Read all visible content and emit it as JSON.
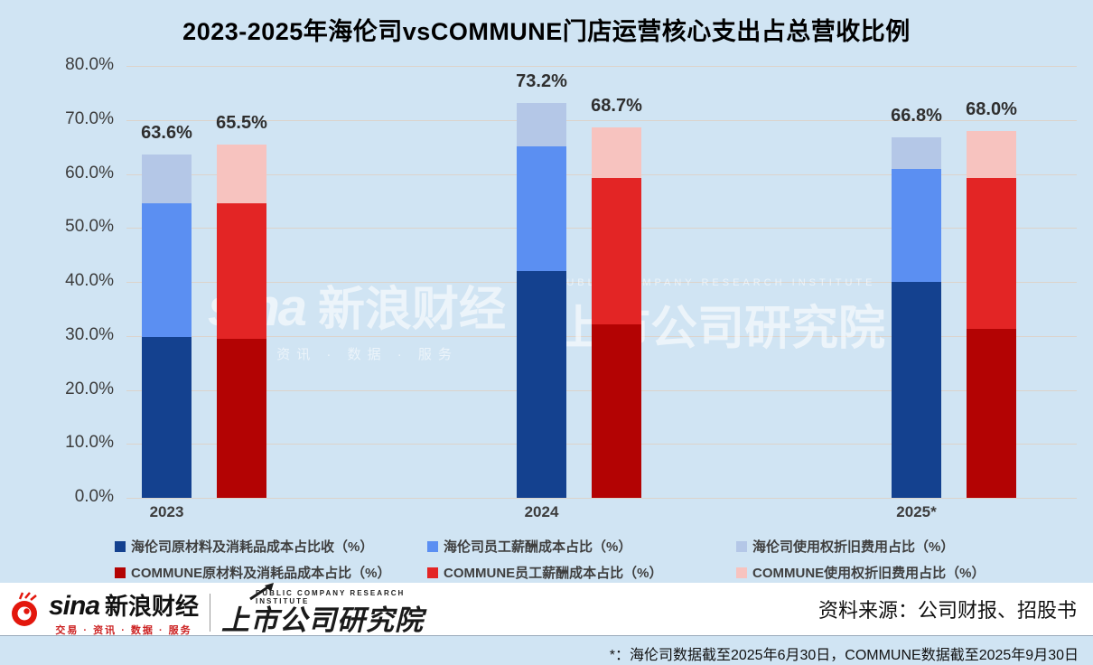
{
  "title": "2023-2025年海伦司vsCOMMUNE门店运营核心支出占总营收比例",
  "colors": {
    "background": "#D0E4F3",
    "gridline": "#DCD3CB",
    "helens_materials": "#14418F",
    "helens_payroll": "#5B8FF2",
    "helens_depreciation": "#B4C7E7",
    "commune_materials": "#B30303",
    "commune_payroll": "#E32525",
    "commune_depreciation": "#F7C3BF",
    "sina_red": "#E3170D"
  },
  "chart_data": {
    "type": "bar",
    "stacked": true,
    "categories": [
      "2023",
      "2024",
      "2025*"
    ],
    "ylim": [
      0,
      80
    ],
    "ytick_labels": [
      "80.0%",
      "70.0%",
      "60.0%",
      "50.0%",
      "40.0%",
      "30.0%",
      "20.0%",
      "10.0%",
      "0.0%"
    ],
    "grid": true,
    "legend_position": "bottom",
    "groups": [
      {
        "name": "海伦司",
        "totals": [
          63.6,
          73.2,
          66.8
        ],
        "total_labels": [
          "63.6%",
          "73.2%",
          "66.8%"
        ],
        "series": [
          {
            "name": "海伦司原材料及消耗品成本占比收（%）",
            "color": "#14418F",
            "values": [
              29.8,
              42.0,
              40.0
            ]
          },
          {
            "name": "海伦司员工薪酬成本占比（%）",
            "color": "#5B8FF2",
            "values": [
              24.7,
              23.1,
              21.0
            ]
          },
          {
            "name": "海伦司使用权折旧费用占比（%）",
            "color": "#B4C7E7",
            "values": [
              9.1,
              8.1,
              5.8
            ]
          }
        ]
      },
      {
        "name": "COMMUNE",
        "totals": [
          65.5,
          68.7,
          68.0
        ],
        "total_labels": [
          "65.5%",
          "68.7%",
          "68.0%"
        ],
        "series": [
          {
            "name": "COMMUNE原材料及消耗品成本占比（%）",
            "color": "#B30303",
            "values": [
              29.4,
              32.2,
              31.3
            ]
          },
          {
            "name": "COMMUNE员工薪酬成本占比（%）",
            "color": "#E32525",
            "values": [
              25.1,
              27.0,
              28.0
            ]
          },
          {
            "name": "COMMUNE使用权折旧费用占比（%）",
            "color": "#F7C3BF",
            "values": [
              11.0,
              9.5,
              8.7
            ]
          }
        ]
      }
    ]
  },
  "watermark": {
    "brand": "sina",
    "brand_cn": "新浪财经",
    "tagline": "· 资讯 · 数据 · 服务",
    "institute": "上市公司研究院",
    "institute_en": "PUBLIC COMPANY RESEARCH INSTITUTE"
  },
  "footer": {
    "sina_brand": "sina",
    "sina_brand_cn": "新浪财经",
    "sina_tagline": "交易 · 资讯 · 数据 · 服务",
    "institute": "上市公司研究院",
    "institute_en": "PUBLIC COMPANY RESEARCH INSTITUTE",
    "source": "资料来源：公司财报、招股书"
  },
  "note": "*：海伦司数据截至2025年6月30日，COMMUNE数据截至2025年9月30日"
}
